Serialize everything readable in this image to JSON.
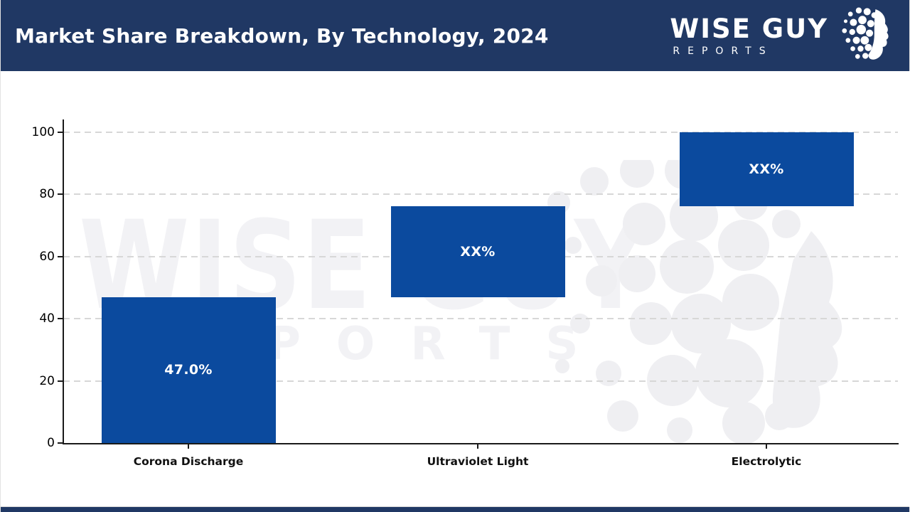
{
  "header": {
    "title": "Market Share Breakdown, By Technology, 2024",
    "logo": {
      "line1": "WISE GUY",
      "line2": "REPORTS"
    }
  },
  "watermark": {
    "line1": "WISE GUY",
    "line2": "REPORTS"
  },
  "colors": {
    "header_bg": "#203864",
    "bar": "#0b4a9e",
    "bar_label_text": "#ffffff",
    "axis": "#1a1a1a",
    "gridline": "#d7d7d7",
    "watermark": "#f2f2f5",
    "footer_bar": "#203864"
  },
  "chart_data": {
    "type": "bar",
    "subtype": "floating-segment-breakdown",
    "title": "Market Share Breakdown, By Technology, 2024",
    "categories": [
      "Corona Discharge",
      "Ultraviolet Light",
      "Electrolytic"
    ],
    "segments": [
      {
        "category": "Corona Discharge",
        "start": 0,
        "end": 47,
        "label": "47.0%"
      },
      {
        "category": "Ultraviolet Light",
        "start": 47,
        "end": 76.2,
        "label": "XX%"
      },
      {
        "category": "Electrolytic",
        "start": 76.2,
        "end": 100,
        "label": "XX%"
      }
    ],
    "xlabel": "",
    "ylabel": "",
    "ylim": [
      0,
      100
    ],
    "yticks": [
      0,
      20,
      40,
      60,
      80,
      100
    ],
    "grid": "horizontal-dashed",
    "legend": "none"
  }
}
